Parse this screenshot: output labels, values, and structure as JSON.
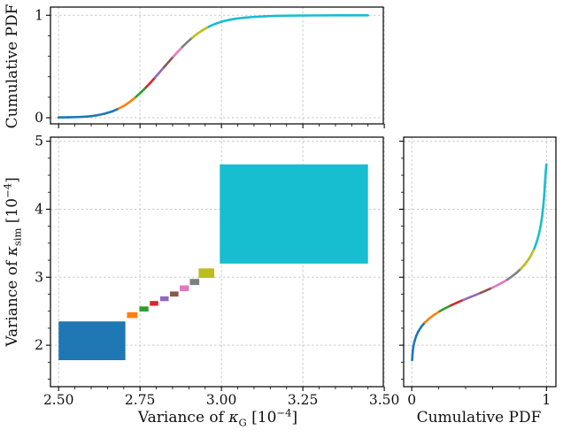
{
  "figure": {
    "labels": {
      "cumulative_pdf": "Cumulative PDF",
      "variance_prefix": "Variance of ",
      "kappa": "κ",
      "sub_G": "G",
      "sub_sim": "sim",
      "unit_open": " [10",
      "unit_exp": "−4",
      "unit_close": "]"
    },
    "colors": {
      "deciles": [
        "#1f77b4",
        "#ff7f0e",
        "#2ca02c",
        "#d62728",
        "#9467bd",
        "#8c564b",
        "#e377c2",
        "#7f7f7f",
        "#bcbd22",
        "#17becf"
      ],
      "grid": "#c9c9c9",
      "axis": "#000000",
      "tick_label": "#111111"
    }
  },
  "chart_data": [
    {
      "id": "top_marginal",
      "type": "line",
      "title": "",
      "xlabel": "",
      "ylabel": "Cumulative PDF",
      "xlim": [
        2.475,
        3.497
      ],
      "ylim": [
        -0.06,
        1.08
      ],
      "xticks": [
        2.5,
        2.75,
        3.0,
        3.25,
        3.5
      ],
      "xtick_labels": [
        "",
        "",
        "",
        "",
        ""
      ],
      "yticks": [
        0,
        1
      ],
      "ytick_labels": [
        "0",
        "1"
      ],
      "x_minor_step": 0.05,
      "y_minor_step": 0.2,
      "grid": true,
      "cdf_axis": "y",
      "points": [
        [
          2.5,
          0.003
        ],
        [
          2.53,
          0.004
        ],
        [
          2.56,
          0.007
        ],
        [
          2.59,
          0.012
        ],
        [
          2.615,
          0.022
        ],
        [
          2.64,
          0.038
        ],
        [
          2.665,
          0.062
        ],
        [
          2.685,
          0.09
        ],
        [
          2.705,
          0.125
        ],
        [
          2.722,
          0.163
        ],
        [
          2.738,
          0.205
        ],
        [
          2.753,
          0.248
        ],
        [
          2.768,
          0.295
        ],
        [
          2.782,
          0.342
        ],
        [
          2.796,
          0.392
        ],
        [
          2.81,
          0.443
        ],
        [
          2.824,
          0.494
        ],
        [
          2.838,
          0.545
        ],
        [
          2.852,
          0.595
        ],
        [
          2.866,
          0.644
        ],
        [
          2.88,
          0.691
        ],
        [
          2.895,
          0.737
        ],
        [
          2.91,
          0.78
        ],
        [
          2.926,
          0.82
        ],
        [
          2.943,
          0.856
        ],
        [
          2.961,
          0.888
        ],
        [
          2.98,
          0.915
        ],
        [
          3.0,
          0.937
        ],
        [
          3.022,
          0.954
        ],
        [
          3.046,
          0.967
        ],
        [
          3.072,
          0.977
        ],
        [
          3.1,
          0.984
        ],
        [
          3.132,
          0.99
        ],
        [
          3.168,
          0.994
        ],
        [
          3.21,
          0.996
        ],
        [
          3.26,
          0.998
        ],
        [
          3.32,
          0.999
        ],
        [
          3.39,
          1.0
        ],
        [
          3.45,
          1.0
        ]
      ]
    },
    {
      "id": "joint_panel",
      "type": "rect-bins",
      "title": "",
      "xlabel": "Variance of κ_G [10⁻⁴]",
      "ylabel": "Variance of κ_sim [10⁻⁴]",
      "xlim": [
        2.475,
        3.497
      ],
      "ylim": [
        1.39,
        5.06
      ],
      "xticks": [
        2.5,
        2.75,
        3.0,
        3.25,
        3.5
      ],
      "xtick_labels": [
        "2.50",
        "2.75",
        "3.00",
        "3.25",
        "3.50"
      ],
      "yticks": [
        2,
        3,
        4,
        5
      ],
      "ytick_labels": [
        "2",
        "3",
        "4",
        "5"
      ],
      "x_minor_step": 0.05,
      "y_minor_step": 0.25,
      "grid": true,
      "rects": [
        {
          "x": [
            2.5,
            2.705
          ],
          "y": [
            1.78,
            2.35
          ],
          "color": 0
        },
        {
          "x": [
            2.71,
            2.742
          ],
          "y": [
            2.4,
            2.485
          ],
          "color": 1
        },
        {
          "x": [
            2.748,
            2.776
          ],
          "y": [
            2.495,
            2.57
          ],
          "color": 2
        },
        {
          "x": [
            2.78,
            2.806
          ],
          "y": [
            2.58,
            2.65
          ],
          "color": 3
        },
        {
          "x": [
            2.812,
            2.838
          ],
          "y": [
            2.648,
            2.718
          ],
          "color": 4
        },
        {
          "x": [
            2.842,
            2.868
          ],
          "y": [
            2.715,
            2.79
          ],
          "color": 5
        },
        {
          "x": [
            2.872,
            2.9
          ],
          "y": [
            2.795,
            2.88
          ],
          "color": 6
        },
        {
          "x": [
            2.903,
            2.932
          ],
          "y": [
            2.885,
            2.975
          ],
          "color": 7
        },
        {
          "x": [
            2.93,
            2.978
          ],
          "y": [
            2.99,
            3.13
          ],
          "color": 8
        },
        {
          "x": [
            2.995,
            3.45
          ],
          "y": [
            3.2,
            4.66
          ],
          "color": 9
        }
      ]
    },
    {
      "id": "right_marginal",
      "type": "line",
      "title": "",
      "xlabel": "Cumulative PDF",
      "ylabel": "",
      "xlim": [
        -0.06,
        1.07
      ],
      "ylim": [
        1.39,
        5.06
      ],
      "xticks": [
        0,
        1
      ],
      "xtick_labels": [
        "0",
        "1"
      ],
      "yticks": [
        2,
        3,
        4,
        5
      ],
      "ytick_labels": [
        "",
        "",
        "",
        ""
      ],
      "x_minor_step": 0.2,
      "y_minor_step": 0.25,
      "grid": true,
      "cdf_axis": "x",
      "points": [
        [
          0.003,
          1.78
        ],
        [
          0.005,
          1.85
        ],
        [
          0.008,
          1.92
        ],
        [
          0.013,
          1.99
        ],
        [
          0.021,
          2.06
        ],
        [
          0.032,
          2.13
        ],
        [
          0.048,
          2.2
        ],
        [
          0.07,
          2.27
        ],
        [
          0.098,
          2.335
        ],
        [
          0.131,
          2.395
        ],
        [
          0.168,
          2.45
        ],
        [
          0.208,
          2.5
        ],
        [
          0.25,
          2.545
        ],
        [
          0.293,
          2.587
        ],
        [
          0.337,
          2.627
        ],
        [
          0.381,
          2.665
        ],
        [
          0.425,
          2.7
        ],
        [
          0.469,
          2.735
        ],
        [
          0.512,
          2.77
        ],
        [
          0.554,
          2.806
        ],
        [
          0.595,
          2.843
        ],
        [
          0.635,
          2.882
        ],
        [
          0.674,
          2.923
        ],
        [
          0.711,
          2.967
        ],
        [
          0.746,
          3.015
        ],
        [
          0.779,
          3.067
        ],
        [
          0.81,
          3.124
        ],
        [
          0.839,
          3.187
        ],
        [
          0.865,
          3.257
        ],
        [
          0.889,
          3.335
        ],
        [
          0.91,
          3.423
        ],
        [
          0.928,
          3.522
        ],
        [
          0.944,
          3.634
        ],
        [
          0.957,
          3.76
        ],
        [
          0.968,
          3.9
        ],
        [
          0.977,
          4.056
        ],
        [
          0.984,
          4.23
        ],
        [
          0.99,
          4.42
        ],
        [
          0.995,
          4.56
        ],
        [
          0.998,
          4.63
        ],
        [
          1.0,
          4.66
        ]
      ]
    }
  ]
}
